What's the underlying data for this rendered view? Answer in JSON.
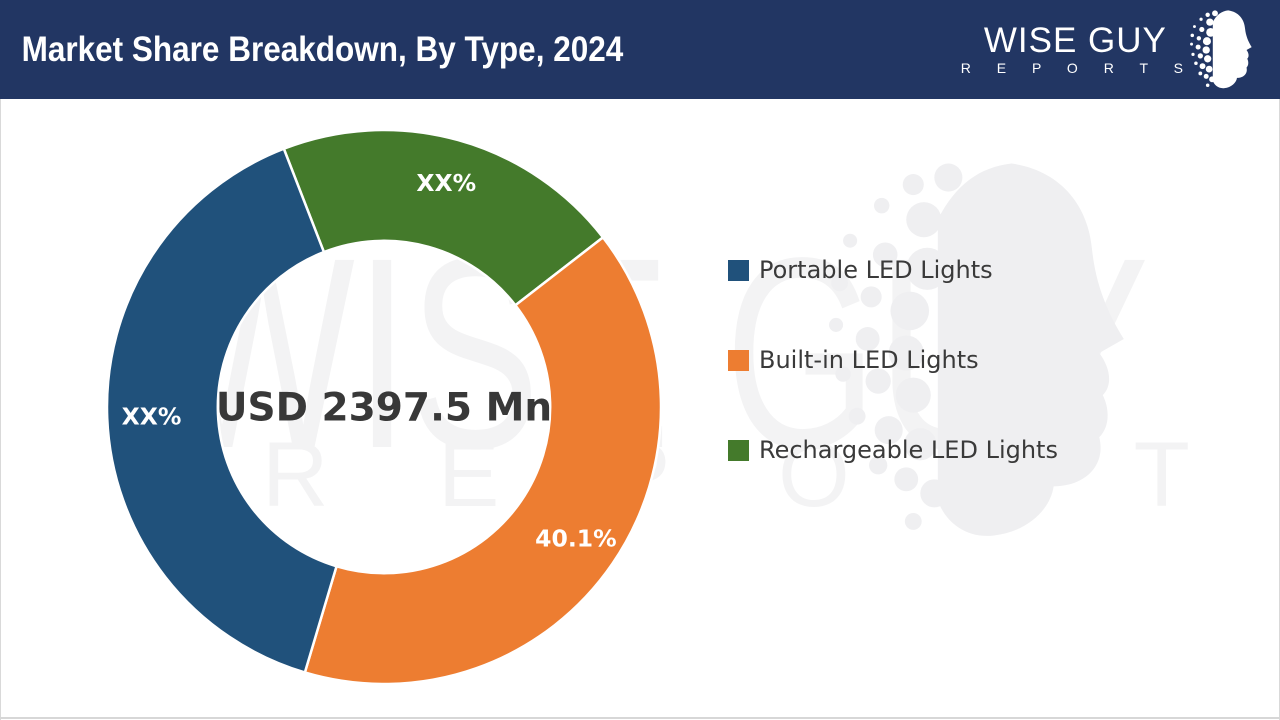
{
  "header": {
    "title": "Market Share Breakdown, By Type, 2024",
    "logo": {
      "wordmark": "WISE GUY",
      "reports": "R E P O R T S"
    }
  },
  "watermark": {
    "wordmark": "WISE GUY",
    "reports": "R E P O R T S"
  },
  "chart_data": {
    "type": "pie",
    "title": "Market Share Breakdown, By Type, 2024",
    "donut": true,
    "center_label": "USD 2397.5 Mn",
    "start_angle_deg": -21.2,
    "clockwise": true,
    "draw_order": "reversed",
    "inner_radius_ratio": 0.6,
    "label_radius_ratio": 0.84,
    "separator_color": "#ffffff",
    "slices": [
      {
        "name": "Portable LED Lights",
        "value_pct": 39.5,
        "label": "XX%",
        "color": "#20517b"
      },
      {
        "name": "Built-in LED Lights",
        "value_pct": 40.1,
        "label": "40.1%",
        "color": "#ed7d31"
      },
      {
        "name": "Rechargeable LED Lights",
        "value_pct": 20.4,
        "label": "XX%",
        "color": "#447a2b"
      }
    ]
  },
  "legend": {
    "items": [
      {
        "label": "Portable LED Lights"
      },
      {
        "label": "Built-in LED Lights"
      },
      {
        "label": "Rechargeable LED Lights"
      }
    ]
  }
}
